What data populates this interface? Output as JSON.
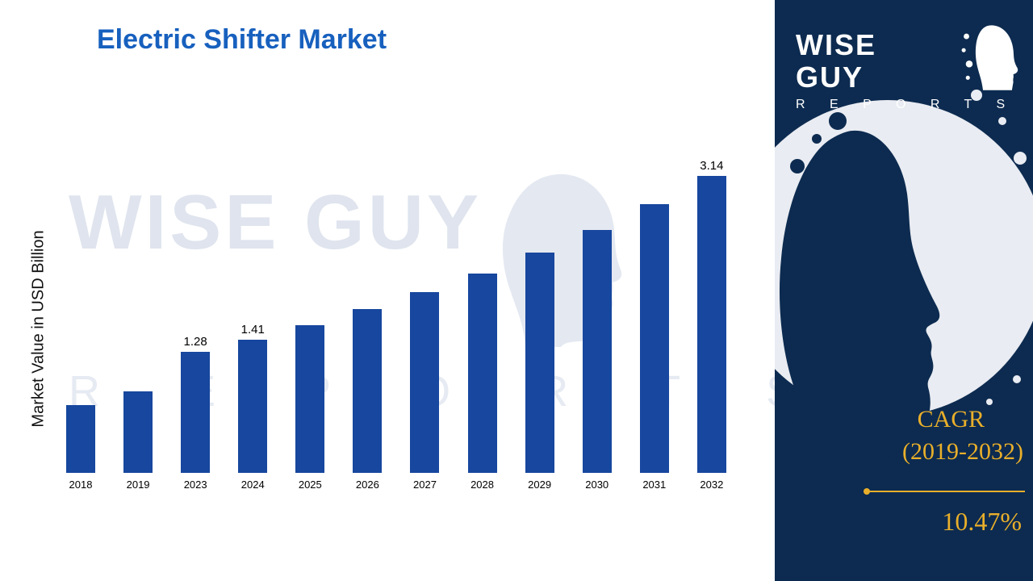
{
  "title": "Electric Shifter Market",
  "y_axis_label": "Market Value in USD Billion",
  "watermark": {
    "line1": "WISE GUY",
    "line2": "R E P O R T S"
  },
  "logo": {
    "line1": "WISE GUY",
    "line2": "R E P O R T S"
  },
  "cagr": {
    "label": "CAGR",
    "range": "(2019-2032)",
    "value": "10.47%"
  },
  "colors": {
    "bar": "#17479E",
    "title": "#1760BE",
    "panel": "#0D2B50",
    "accent": "#E9AF2A",
    "watermark": "#DFE4EE",
    "circle": "#E9ECF2"
  },
  "chart_data": {
    "type": "bar",
    "title": "Electric Shifter Market",
    "xlabel": "",
    "ylabel": "Market Value in USD Billion",
    "unit": "USD Billion",
    "categories": [
      "2018",
      "2019",
      "2023",
      "2024",
      "2025",
      "2026",
      "2027",
      "2028",
      "2029",
      "2030",
      "2031",
      "2032"
    ],
    "values": [
      0.72,
      0.86,
      1.28,
      1.41,
      1.56,
      1.73,
      1.91,
      2.11,
      2.33,
      2.57,
      2.84,
      3.14
    ],
    "data_labels": {
      "2023": "1.28",
      "2024": "1.41",
      "2032": "3.14"
    },
    "ylim": [
      0,
      3.5
    ],
    "grid": false,
    "legend": false,
    "bar_color": "#17479E"
  }
}
